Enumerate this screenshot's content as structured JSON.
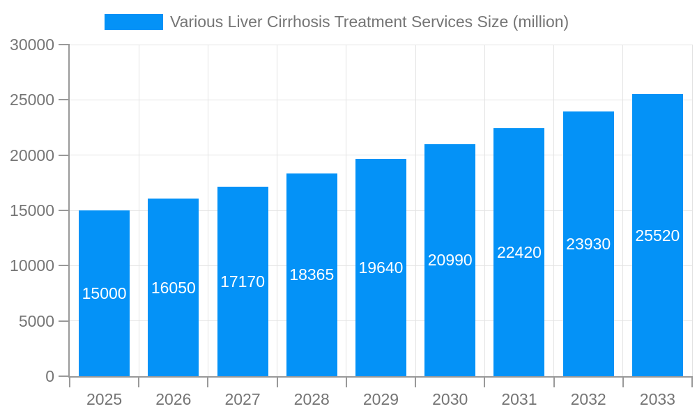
{
  "chart_data": {
    "type": "bar",
    "title": "Various Liver Cirrhosis Treatment Services Size (million)",
    "categories": [
      "2025",
      "2026",
      "2027",
      "2028",
      "2029",
      "2030",
      "2031",
      "2032",
      "2033"
    ],
    "values": [
      15000,
      16050,
      17170,
      18365,
      19640,
      20990,
      22420,
      23930,
      25520
    ],
    "series": [
      {
        "name": "Various Liver Cirrhosis Treatment Services Size (million)",
        "values": [
          15000,
          16050,
          17170,
          18365,
          19640,
          20990,
          22420,
          23930,
          25520
        ]
      }
    ],
    "xlabel": "",
    "ylabel": "",
    "ylim": [
      0,
      30000
    ],
    "yticks": [
      0,
      5000,
      10000,
      15000,
      20000,
      25000,
      30000
    ],
    "grid": true,
    "legend_position": "top",
    "bar_label_position": "inside-center",
    "colors": {
      "bar": "#0492f7",
      "bar_label": "#ffffff",
      "axis_line": "#999999",
      "tick_mark": "#999999",
      "grid_line": "#e3e3e3",
      "tick_label": "#757575",
      "title": "#757575",
      "background": "#ffffff"
    }
  }
}
